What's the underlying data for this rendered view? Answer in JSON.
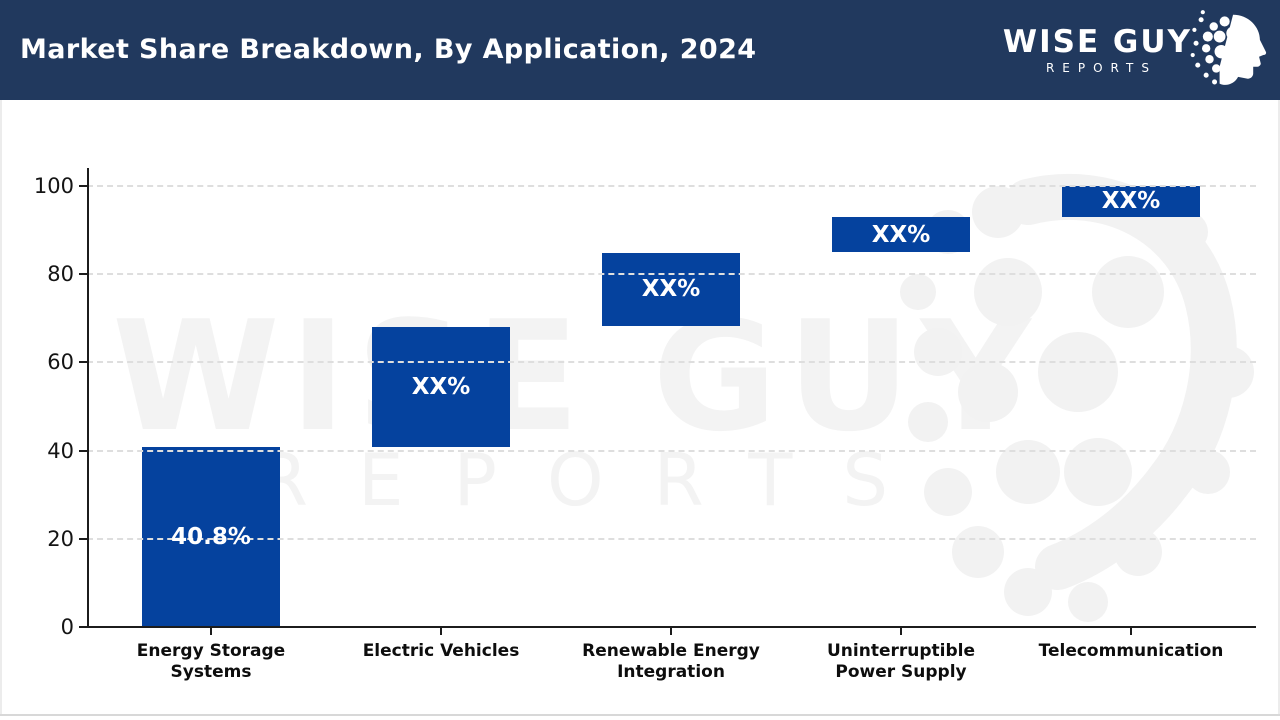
{
  "header": {
    "title": "Market Share Breakdown, By Application, 2024",
    "brand_line1": "WISE GUY",
    "brand_line2": "REPORTS",
    "bg_color": "#21395e"
  },
  "watermark": {
    "line1": "WISE GUY",
    "line2": "REPORTS"
  },
  "chart_data": {
    "type": "bar",
    "subtype": "waterfall",
    "title": "Market Share Breakdown, By Application, 2024",
    "xlabel": "",
    "ylabel": "",
    "ylim": [
      0,
      100
    ],
    "yticks": [
      0,
      20,
      40,
      60,
      80,
      100
    ],
    "grid": "horizontal-dashed",
    "legend": "none",
    "bar_color": "#05429e",
    "value_label_color": "#ffffff",
    "categories": [
      "Energy Storage Systems",
      "Electric Vehicles",
      "Renewable Energy Integration",
      "Uninterruptible Power Supply",
      "Telecommunication"
    ],
    "segments": [
      {
        "category": "Energy Storage Systems",
        "label_lines": [
          "Energy Storage",
          "Systems"
        ],
        "start": 0,
        "end": 40.8,
        "value_label": "40.8%"
      },
      {
        "category": "Electric Vehicles",
        "label_lines": [
          "Electric Vehicles"
        ],
        "start": 40.8,
        "end": 68.0,
        "value_label": "XX%"
      },
      {
        "category": "Renewable Energy Integration",
        "label_lines": [
          "Renewable Energy",
          "Integration"
        ],
        "start": 68.3,
        "end": 84.9,
        "value_label": "XX%"
      },
      {
        "category": "Uninterruptible Power Supply",
        "label_lines": [
          "Uninterruptible",
          "Power Supply"
        ],
        "start": 85.0,
        "end": 93.0,
        "value_label": "XX%"
      },
      {
        "category": "Telecommunication",
        "label_lines": [
          "Telecommunication"
        ],
        "start": 93.0,
        "end": 100.0,
        "value_label": "XX%"
      }
    ]
  }
}
